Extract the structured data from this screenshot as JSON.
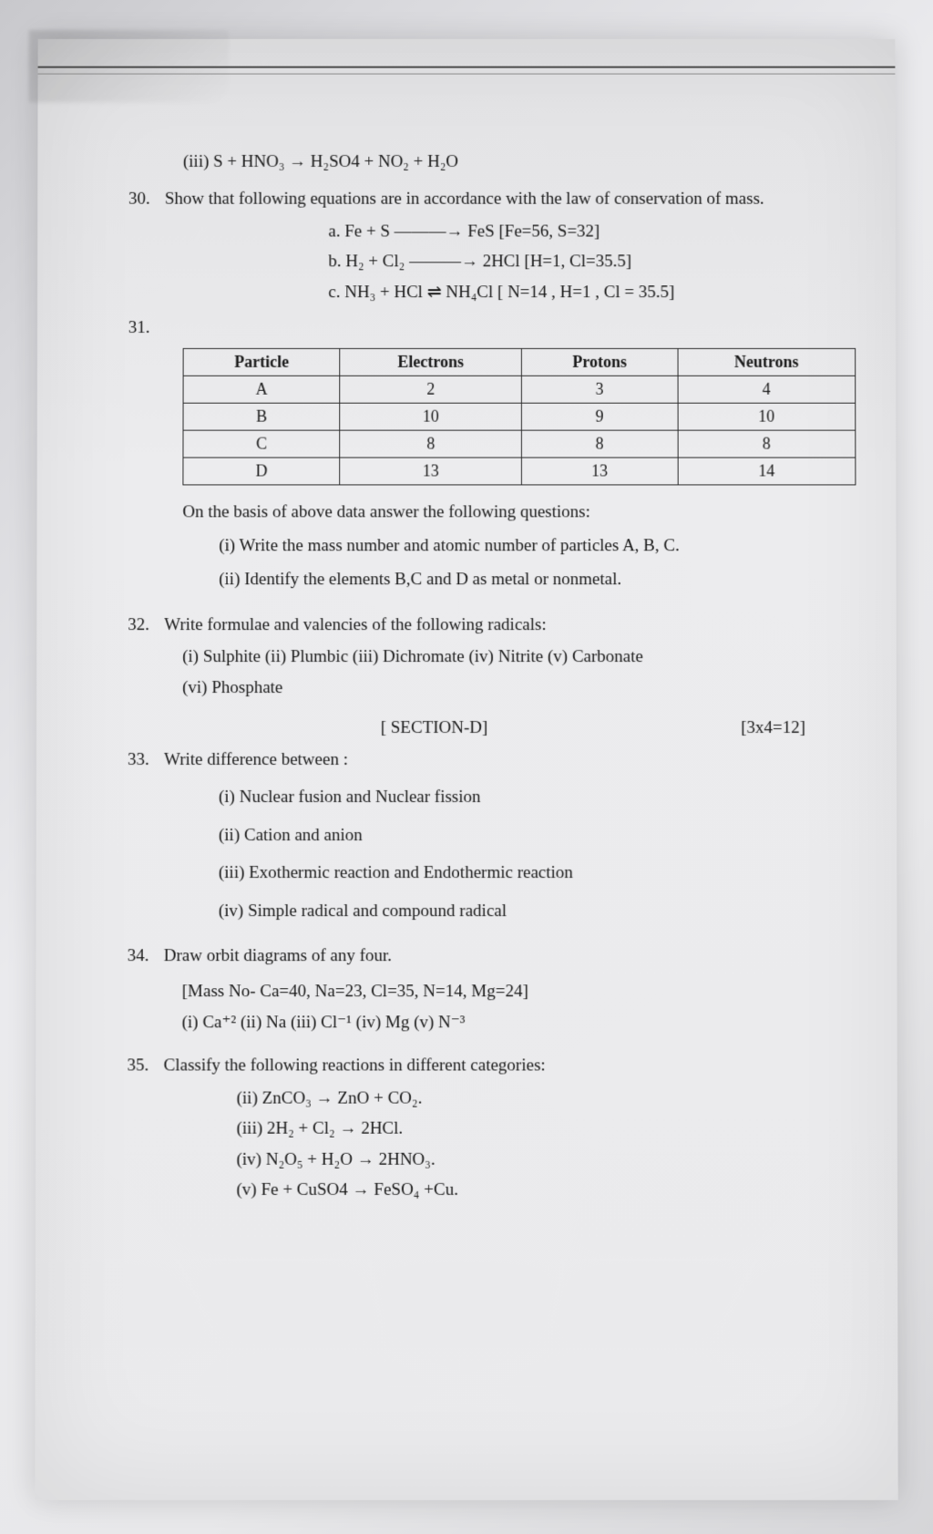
{
  "q29_iii": "(iii) S + HNO₃ → H₂SO4 + NO₂ + H₂O",
  "q30": {
    "num": "30.",
    "text": "Show that following equations are in accordance with the law of conservation of mass.",
    "a": "a.  Fe + S  ———→  FeS   [Fe=56, S=32]",
    "b": "b.  H₂ + Cl₂  ———→  2HCl [H=1, Cl=35.5]",
    "c": "c.  NH₃ + HCl  ⇌  NH₄Cl  [ N=14 , H=1 , Cl = 35.5]"
  },
  "q31": {
    "num": "31.",
    "headers": [
      "Particle",
      "Electrons",
      "Protons",
      "Neutrons"
    ],
    "rows": [
      [
        "A",
        "2",
        "3",
        "4"
      ],
      [
        "B",
        "10",
        "9",
        "10"
      ],
      [
        "C",
        "8",
        "8",
        "8"
      ],
      [
        "D",
        "13",
        "13",
        "14"
      ]
    ],
    "lead": "On the basis of above data answer the following questions:",
    "i": "(i)     Write the mass number and atomic number of particles A, B, C.",
    "ii": "(ii)    Identify the elements B,C and D as metal or nonmetal."
  },
  "q32": {
    "num": "32.",
    "text": "Write formulae and valencies of the following radicals:",
    "items": "(i) Sulphite (ii) Plumbic (iii) Dichromate (iv) Nitrite (v) Carbonate",
    "items2": "(vi) Phosphate"
  },
  "sectionD": {
    "label": "[ SECTION-D]",
    "marks": "[3x4=12]"
  },
  "q33": {
    "num": "33.",
    "text": "Write difference between :",
    "i": "(i) Nuclear fusion and Nuclear fission",
    "ii": "(ii) Cation and anion",
    "iii": "(iii) Exothermic reaction and Endothermic reaction",
    "iv": "(iv) Simple radical and compound radical"
  },
  "q34": {
    "num": "34.",
    "text": "Draw orbit diagrams of any four.",
    "given": "[Mass No- Ca=40, Na=23, Cl=35, N=14, Mg=24]",
    "items": "(i) Ca⁺² (ii) Na (iii) Cl⁻¹ (iv) Mg (v) N⁻³"
  },
  "q35": {
    "num": "35.",
    "text": "Classify the following reactions in different categories:",
    "ii": "(ii)    ZnCO₃ → ZnO + CO₂.",
    "iii": "(iii)   2H₂ + Cl₂ → 2HCl.",
    "iv": "(iv)   N₂O₅ + H₂O → 2HNO₃.",
    "v": "(v)    Fe + CuSO4 → FeSO₄ +Cu."
  }
}
